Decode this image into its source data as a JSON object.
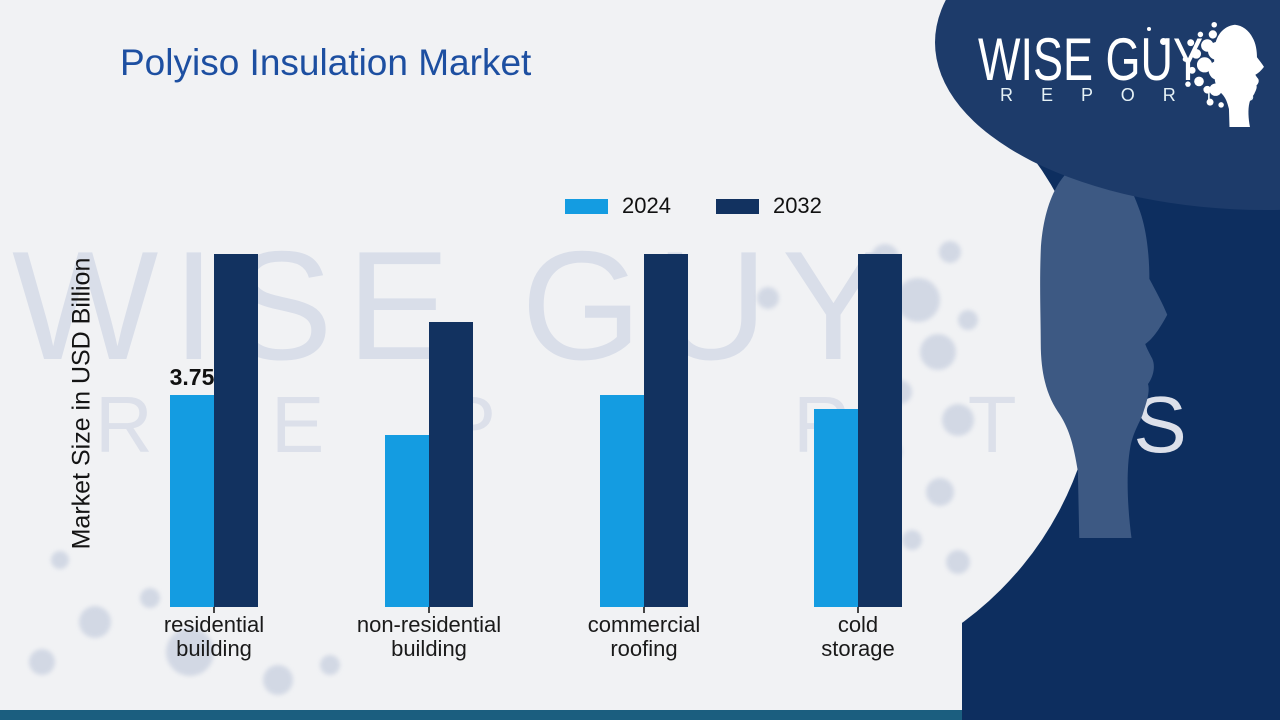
{
  "page": {
    "background_color": "#f1f2f4",
    "footer_bar_color": "#1b5e7f"
  },
  "title": "Polyiso Insulation Market",
  "y_axis_label": "Market Size in USD Billion",
  "brand_logo": {
    "name": "WISE GUY REPORTS",
    "line1": "WISE GUY",
    "line2": "R E P O R T S",
    "background": "#1d3b6a"
  },
  "watermark": {
    "line1": "WISE GUY",
    "line2": "R E P O R T S"
  },
  "chart_data": {
    "type": "bar",
    "title": "Polyiso Insulation Market",
    "xlabel": "",
    "ylabel": "Market Size in USD Billion",
    "categories": [
      "residential building",
      "non-residential building",
      "commercial roofing",
      "cold storage"
    ],
    "series": [
      {
        "name": "2024",
        "color": "#149ce1",
        "values": [
          3.75,
          3.05,
          3.75,
          3.5
        ]
      },
      {
        "name": "2032",
        "color": "#123260",
        "values": [
          6.25,
          5.05,
          6.25,
          6.25
        ]
      }
    ],
    "bar_value_labels": {
      "2024": [
        "3.75",
        null,
        null,
        null
      ],
      "2032": [
        null,
        null,
        null,
        null
      ]
    },
    "ylim": [
      0,
      6.7
    ],
    "grid": false,
    "legend_position": "top-center",
    "axis_ticks_visible": false
  }
}
